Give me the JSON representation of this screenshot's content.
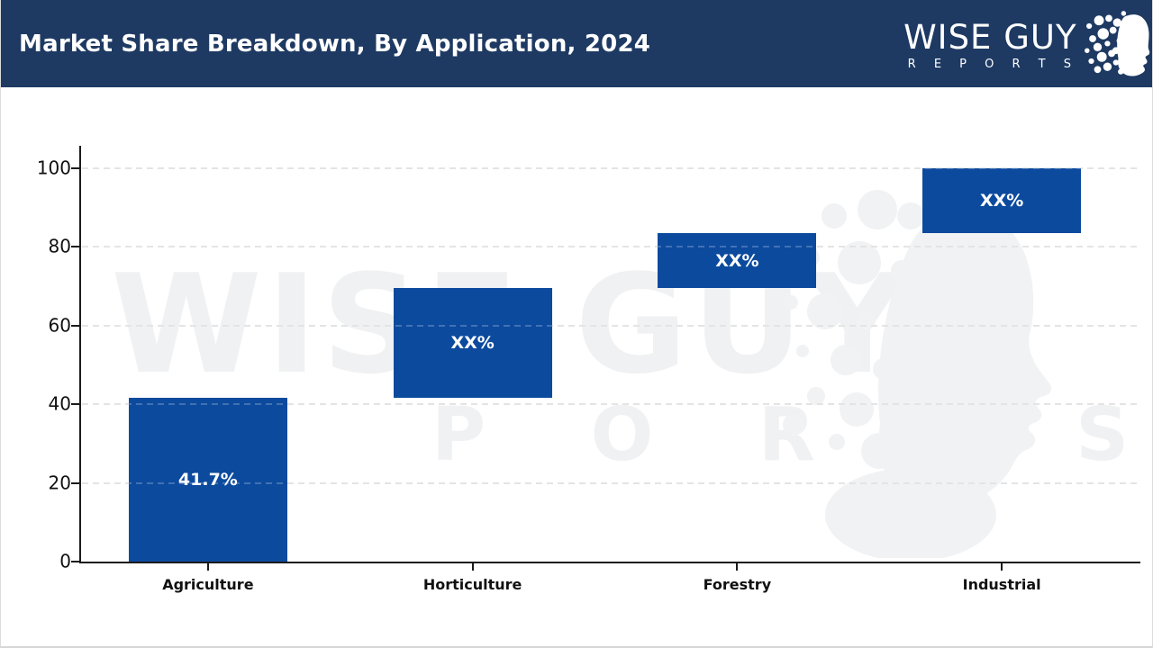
{
  "header": {
    "title": "Market Share Breakdown, By Application, 2024",
    "logo": {
      "brand": "WISE GUY",
      "sub": "R E P O R T S"
    }
  },
  "watermark": {
    "line1": "WISE GUY.",
    "line2": "P O R T S"
  },
  "chart_data": {
    "type": "bar",
    "subtype": "waterfall",
    "title": "Market Share Breakdown, By Application, 2024",
    "categories": [
      "Agriculture",
      "Horticulture",
      "Forestry",
      "Industrial"
    ],
    "segments": [
      {
        "category": "Agriculture",
        "start": 0,
        "end": 41.7,
        "label": "41.7%"
      },
      {
        "category": "Horticulture",
        "start": 41.7,
        "end": 69.4,
        "label": "XX%"
      },
      {
        "category": "Forestry",
        "start": 69.4,
        "end": 83.4,
        "label": "XX%"
      },
      {
        "category": "Industrial",
        "start": 83.4,
        "end": 100,
        "label": "XX%"
      }
    ],
    "xlabel": "",
    "ylabel": "",
    "ylim": [
      0,
      100
    ],
    "yticks": [
      0,
      20,
      40,
      60,
      80,
      100
    ],
    "grid": "horizontal-dashed",
    "legend": "none",
    "bar_color": "#0c4a9e",
    "bar_label_color": "#ffffff",
    "header_bg_color": "#1e3a63",
    "axis_color": "#1a1a1a",
    "gridline_color": "#dcdcdc",
    "watermark_color": "#f0f1f3"
  }
}
